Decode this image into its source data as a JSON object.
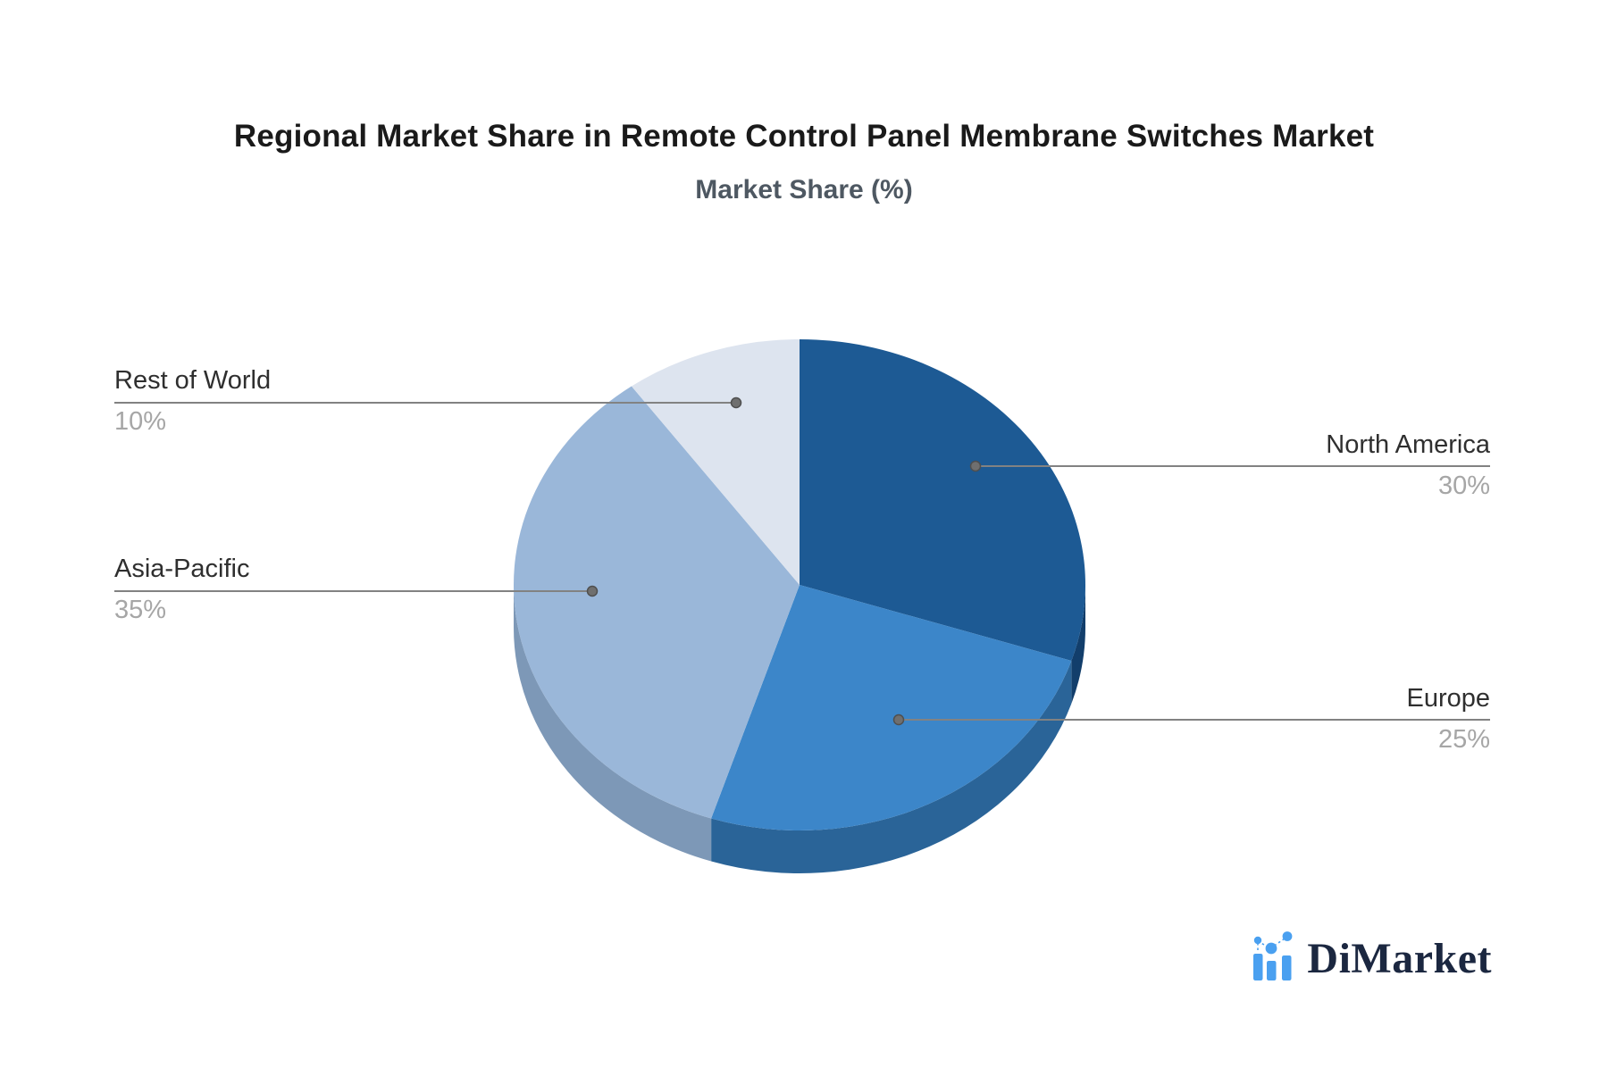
{
  "header": {
    "title": "Regional Market Share in Remote Control Panel Membrane Switches Market",
    "subtitle": "Market Share (%)"
  },
  "chart_data": {
    "type": "pie",
    "title": "Regional Market Share in Remote Control Panel Membrane Switches Market",
    "subtitle": "Market Share (%)",
    "effect": "3d",
    "start_angle_deg": 0,
    "direction": "clockwise",
    "unit": "%",
    "categories": [
      "North America",
      "Europe",
      "Asia-Pacific",
      "Rest of World"
    ],
    "values": [
      30,
      25,
      35,
      10
    ],
    "slices": [
      {
        "label": "North America",
        "value": 30,
        "pct_label": "30%",
        "color": "#1d5a94",
        "side_color": "#123e6b",
        "label_side": "right"
      },
      {
        "label": "Europe",
        "value": 25,
        "pct_label": "25%",
        "color": "#3c86c9",
        "side_color": "#2a6498",
        "label_side": "right"
      },
      {
        "label": "Asia-Pacific",
        "value": 35,
        "pct_label": "35%",
        "color": "#9ab7d9",
        "side_color": "#7d98b7",
        "label_side": "left"
      },
      {
        "label": "Rest of World",
        "value": 10,
        "pct_label": "10%",
        "color": "#dde4ef",
        "side_color": "#b9c4d6",
        "label_side": "left"
      }
    ],
    "legend_position": "none",
    "grid": false
  },
  "colors": {
    "background": "#ffffff",
    "title_text": "#1a1a1a",
    "subtitle_text": "#4e5862",
    "label_text": "#2f2f2f",
    "pct_text": "#a6a6a6",
    "connector_line": "#828282",
    "connector_dot": "#6f6f6f"
  },
  "branding": {
    "logo_text": "DiMarket",
    "logo_icon": "bar-chart-with-dots-icon",
    "logo_text_color": "#1b2740",
    "logo_icon_color": "#4aa0f0"
  }
}
